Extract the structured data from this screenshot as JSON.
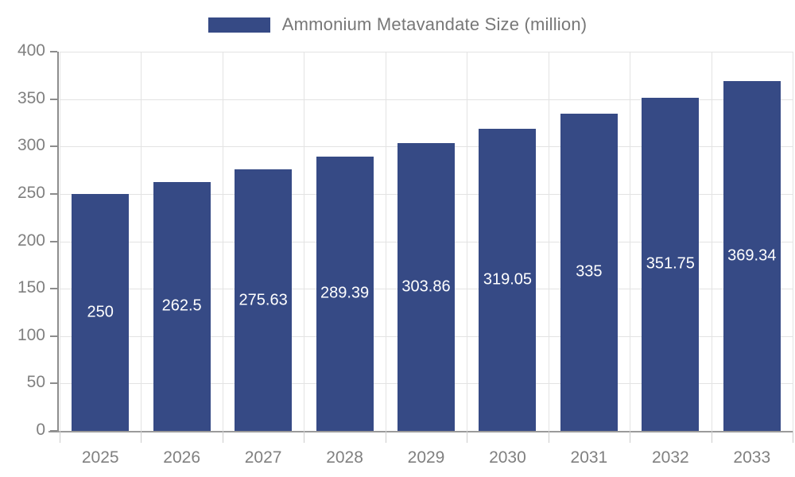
{
  "legend": {
    "label": "Ammonium Metavandate Size (million)",
    "swatch_color": "#364a85"
  },
  "chart_data": {
    "type": "bar",
    "title": "",
    "xlabel": "",
    "ylabel": "",
    "categories": [
      "2025",
      "2026",
      "2027",
      "2028",
      "2029",
      "2030",
      "2031",
      "2032",
      "2033"
    ],
    "values": [
      250,
      262.5,
      275.63,
      289.39,
      303.86,
      319.05,
      335,
      351.75,
      369.34
    ],
    "bar_labels": [
      "250",
      "262.5",
      "275.63",
      "289.39",
      "303.86",
      "319.05",
      "335",
      "351.75",
      "369.34"
    ],
    "ylim": [
      0,
      400
    ],
    "yticks": [
      0,
      50,
      100,
      150,
      200,
      250,
      300,
      350,
      400
    ],
    "grid": "both",
    "legend_position": "top-center",
    "bar_color": "#364a85",
    "bar_label_color": "#ffffff",
    "axis_color": "#8c8c8c",
    "gridline_color": "#e3e3e3",
    "tick_label_color": "#808080"
  }
}
